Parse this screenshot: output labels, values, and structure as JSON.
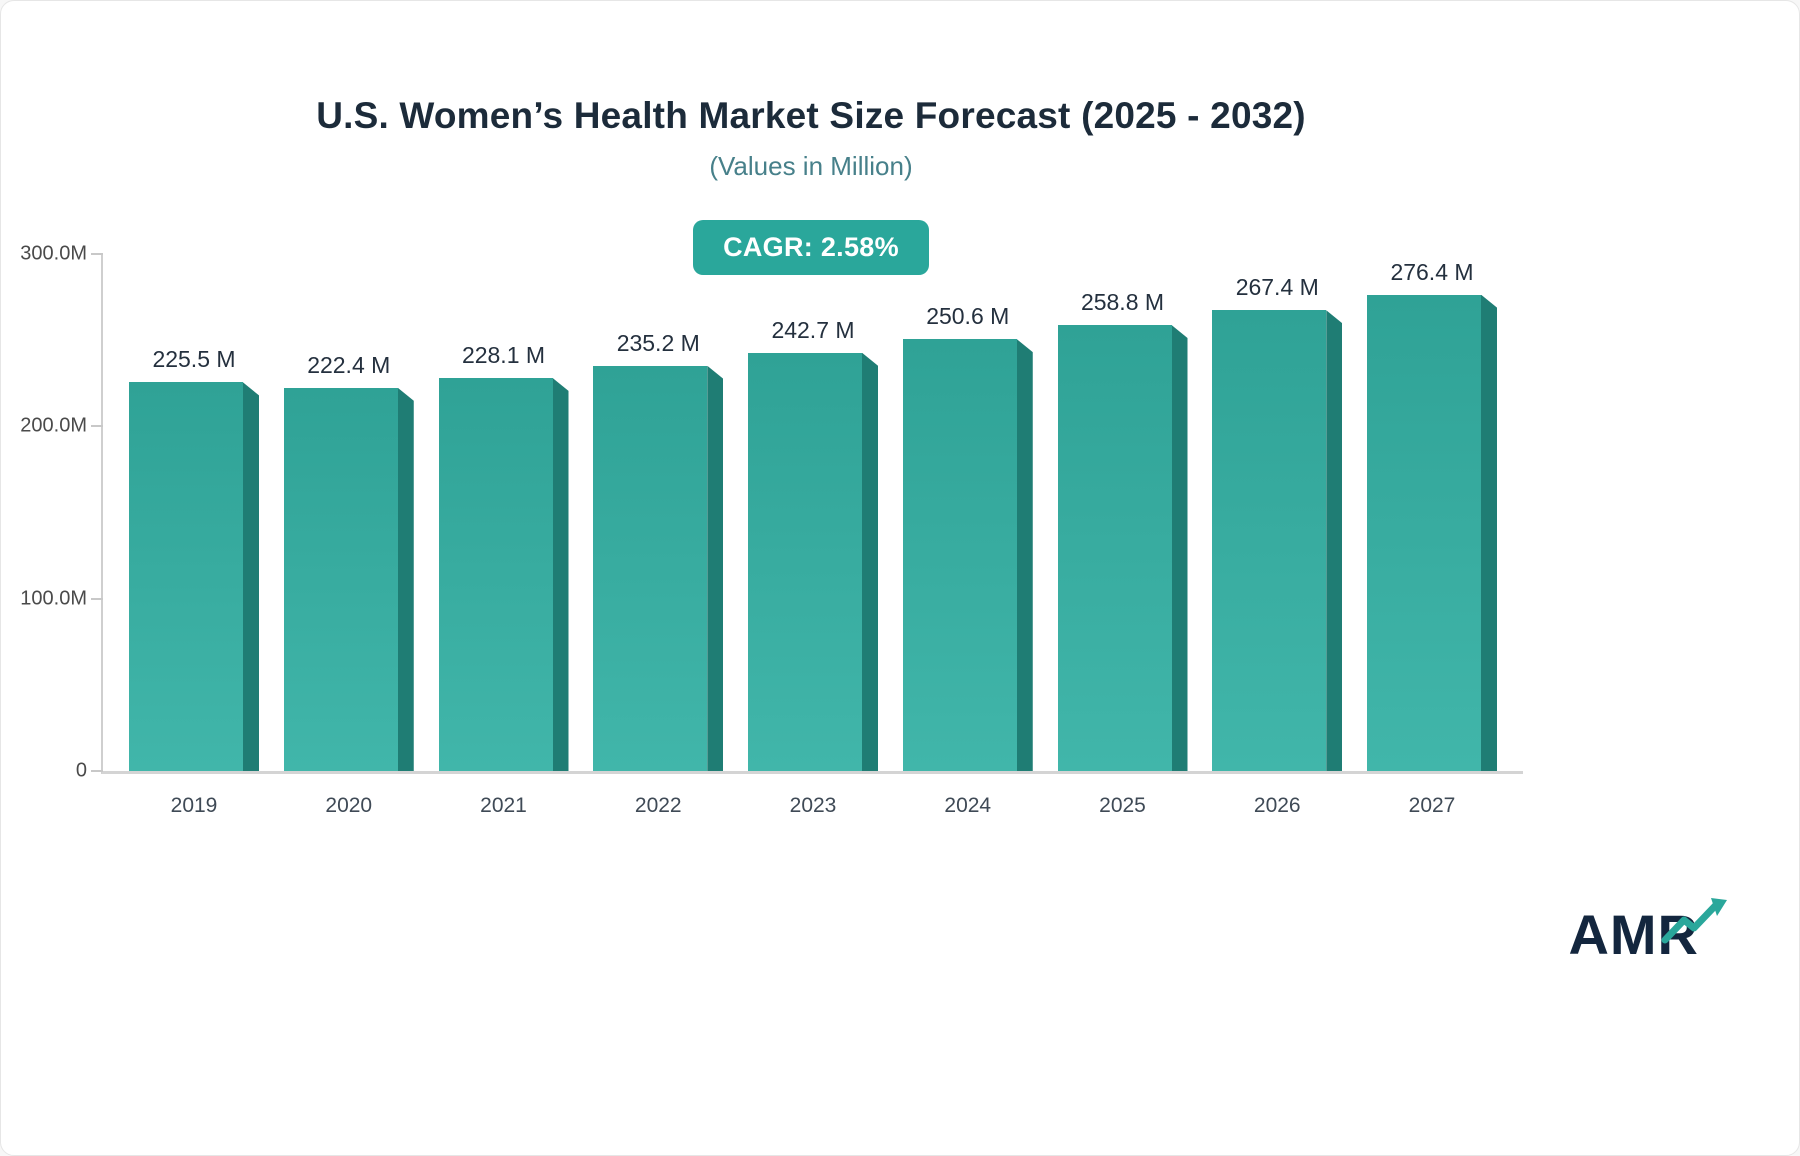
{
  "header": {
    "title": "U.S. Women’s Health Market Size Forecast (2025 - 2032)",
    "subtitle": "(Values in Million)",
    "cagr_badge": "CAGR: 2.58%"
  },
  "chart_data": {
    "type": "bar",
    "title": "U.S. Women’s Health Market Size Forecast (2025 - 2032)",
    "subtitle": "(Values in Million)",
    "annotation": "CAGR: 2.58%",
    "categories": [
      "2019",
      "2020",
      "2021",
      "2022",
      "2023",
      "2024",
      "2025",
      "2026",
      "2027"
    ],
    "values": [
      225.5,
      222.4,
      228.1,
      235.2,
      242.7,
      250.6,
      258.8,
      267.4,
      276.4
    ],
    "value_labels": [
      "225.5 M",
      "222.4 M",
      "228.1 M",
      "235.2 M",
      "242.7 M",
      "250.6 M",
      "258.8 M",
      "267.4 M",
      "276.4 M"
    ],
    "xlabel": "",
    "ylabel": "",
    "ylim": [
      0,
      300
    ],
    "yticks": [
      {
        "label": "300.0M",
        "value": 300
      },
      {
        "label": "200.0M",
        "value": 200
      },
      {
        "label": "100.0M",
        "value": 100
      },
      {
        "label": "0",
        "value": 0
      }
    ],
    "grid": "off",
    "legend": "none",
    "colors": {
      "bar_top": "#2fa296",
      "bar_bottom": "#41b6aa",
      "bar_side": "#1f7d74",
      "badge_bg": "#2aa79b",
      "title_text": "#1c2b3a",
      "subtitle_text": "#47808a",
      "logo_arrow": "#2aa79b"
    }
  },
  "footer": {
    "logo_text": "AMR"
  }
}
